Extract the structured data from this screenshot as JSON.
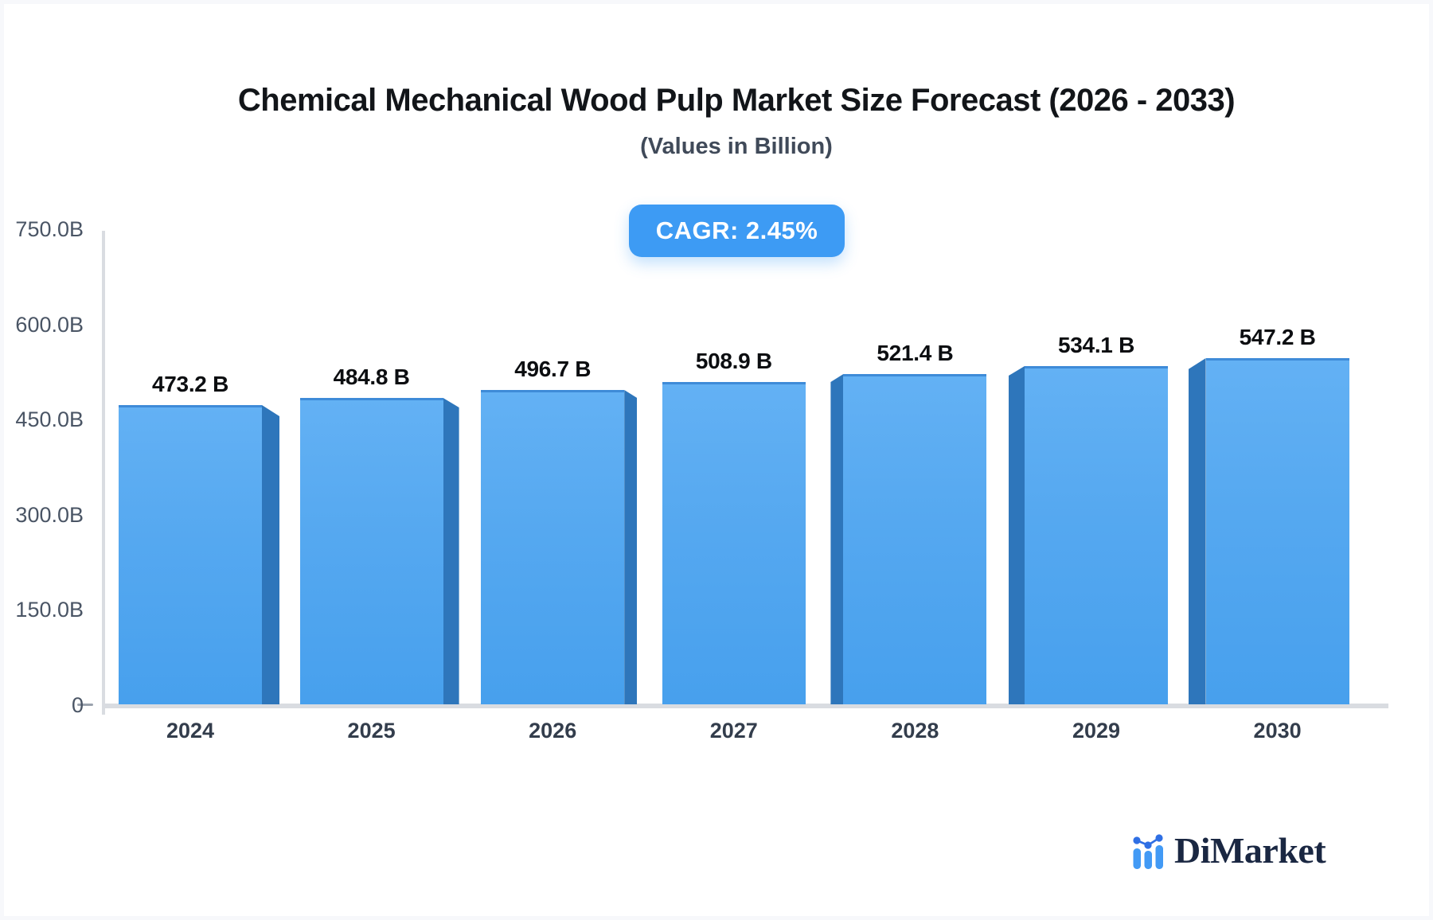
{
  "header": {
    "title": "Chemical Mechanical Wood Pulp Market Size Forecast (2026 - 2033)",
    "subtitle": "(Values in Billion)",
    "cagr_label": "CAGR: 2.45%"
  },
  "chart_data": {
    "type": "bar",
    "title": "Chemical Mechanical Wood Pulp Market Size Forecast (2026 - 2033)",
    "subtitle": "(Values in Billion)",
    "categories": [
      "2024",
      "2025",
      "2026",
      "2027",
      "2028",
      "2029",
      "2030"
    ],
    "values": [
      473.2,
      484.8,
      496.7,
      508.9,
      521.4,
      534.1,
      547.2
    ],
    "value_labels": [
      "473.2 B",
      "484.8 B",
      "496.7 B",
      "508.9 B",
      "521.4 B",
      "534.1 B",
      "547.2 B"
    ],
    "xlabel": "",
    "ylabel": "",
    "ylim": [
      0,
      750
    ],
    "y_tick_values": [
      0,
      150,
      300,
      450,
      600,
      750
    ],
    "y_tick_labels": [
      "0",
      "150.0B",
      "300.0B",
      "450.0B",
      "600.0B",
      "750.0B"
    ],
    "grid": false,
    "legend": false,
    "cagr": "2.45%"
  },
  "colors": {
    "bar_face": "#55a8f0",
    "bar_face_top": "#63b1f4",
    "bar_face_bottom": "#47a0ed",
    "bar_side": "#2e76bb",
    "bar_top_border": "#3e8bd8",
    "badge_bg": "#3d9bf4",
    "badge_text": "#ffffff",
    "axis": "#d9dce1",
    "ytick_text": "#4a5565",
    "xtick_text": "#333d4c",
    "value_text": "#0c0e11",
    "logo_bar": "#429af5",
    "logo_dot": "#2f6fe4",
    "logo_text": "#1a2742"
  },
  "branding": {
    "logo_text": "DiMarket"
  }
}
